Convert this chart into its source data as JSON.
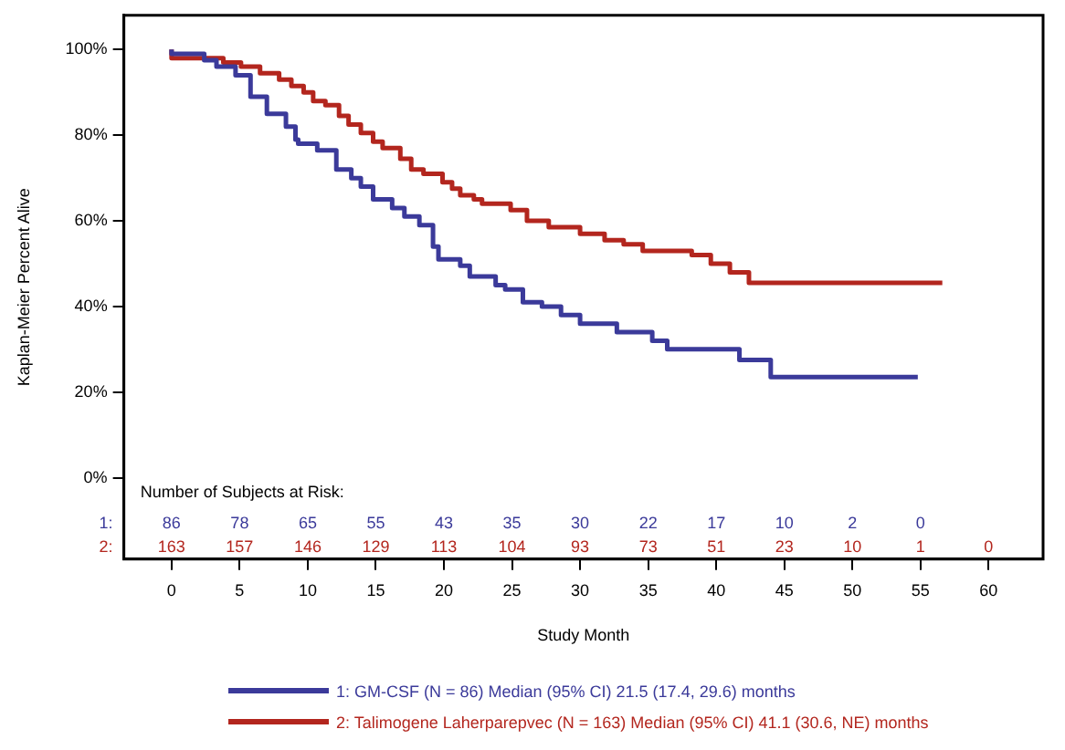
{
  "chart_data": {
    "type": "step",
    "xlabel": "Study Month",
    "ylabel": "Kaplan-Meier Percent Alive",
    "xlim": [
      -3.5,
      64
    ],
    "xticks": [
      0,
      5,
      10,
      15,
      20,
      25,
      30,
      35,
      40,
      45,
      50,
      55,
      60
    ],
    "ylim": [
      -19,
      108
    ],
    "yticks": [
      {
        "value": 0,
        "label": "0%"
      },
      {
        "value": 20,
        "label": "20%"
      },
      {
        "value": 40,
        "label": "40%"
      },
      {
        "value": 60,
        "label": "60%"
      },
      {
        "value": 80,
        "label": "80%"
      },
      {
        "value": 100,
        "label": "100%"
      }
    ],
    "grid": false,
    "legend": "bottom",
    "marker": "none",
    "line_style": "solid",
    "series": [
      {
        "name": "1: GM-CSF (N = 86) Median (95% CI) 21.5 (17.4, 29.6) months",
        "color": "#3b3a9a",
        "x": [
          0,
          2.4,
          3.3,
          4.7,
          5.8,
          7.0,
          8.4,
          9.1,
          9.3,
          10.7,
          12.1,
          13.2,
          13.9,
          14.8,
          16.2,
          17.1,
          18.2,
          19.2,
          19.6,
          21.2,
          21.9,
          23.8,
          24.5,
          25.8,
          27.2,
          28.6,
          30.0,
          32.7,
          35.3,
          36.4,
          41.7,
          44.0,
          46.5,
          54.8
        ],
        "values": [
          100,
          99,
          97.5,
          96,
          94,
          89,
          85,
          82,
          79,
          78,
          76.5,
          72,
          70,
          68,
          65,
          63,
          61,
          59,
          54,
          51,
          49.5,
          47,
          45,
          44,
          41,
          40,
          38,
          36,
          34,
          32,
          30,
          27.5,
          23.5,
          23.5
        ]
      },
      {
        "name": "2: Talimogene Laherparepvec (N = 163) Median (95% CI) 41.1 (30.6, NE) months",
        "color": "#b3261e",
        "x": [
          0,
          3.8,
          5.1,
          6.5,
          7.9,
          8.8,
          9.7,
          10.4,
          11.3,
          12.3,
          13.0,
          13.9,
          14.8,
          15.5,
          16.8,
          17.6,
          18.5,
          19.9,
          20.6,
          21.2,
          22.2,
          22.8,
          24.9,
          26.1,
          27.7,
          30.0,
          31.8,
          33.2,
          34.6,
          38.2,
          39.6,
          41.0,
          42.4,
          47.0,
          56.6
        ],
        "values": [
          100,
          98,
          97,
          96,
          94.5,
          93,
          91.5,
          90,
          88,
          87,
          84.5,
          82.5,
          80.5,
          78.5,
          77,
          74.5,
          72,
          71,
          69,
          67.5,
          66,
          65,
          64,
          62.5,
          60,
          58.5,
          57,
          55.5,
          54.5,
          53,
          52,
          50,
          48,
          45.5,
          45.5
        ]
      }
    ],
    "annotations": [
      "Number of Subjects at Risk:",
      "1:",
      "86",
      "78",
      "65",
      "55",
      "43",
      "35",
      "30",
      "22",
      "17",
      "10",
      "2",
      "0",
      "2:",
      "163",
      "157",
      "146",
      "129",
      "113",
      "104",
      "93",
      "73",
      "51",
      "23",
      "10",
      "1",
      "0"
    ]
  }
}
